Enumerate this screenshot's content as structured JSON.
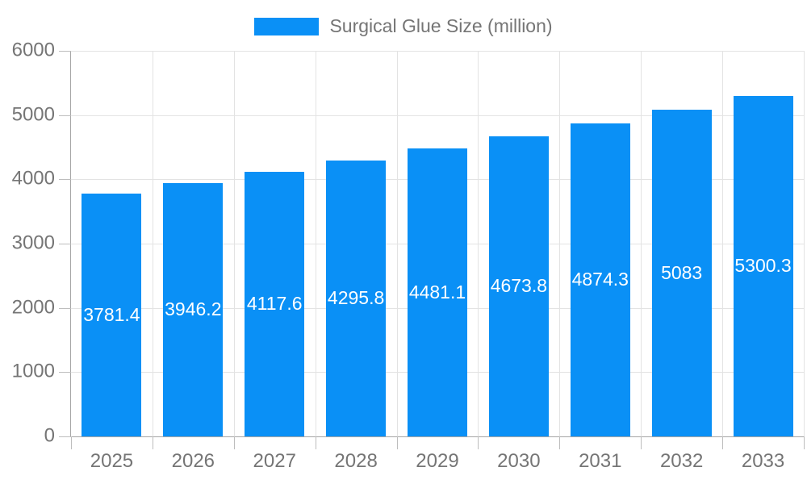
{
  "chart_data": {
    "type": "bar",
    "title": "Surgical Glue Size (million)",
    "legend": {
      "position": "top",
      "label": "Surgical Glue Size (million)"
    },
    "categories": [
      "2025",
      "2026",
      "2027",
      "2028",
      "2029",
      "2030",
      "2031",
      "2032",
      "2033"
    ],
    "series": [
      {
        "name": "Surgical Glue Size (million)",
        "values": [
          3781.4,
          3946.2,
          4117.6,
          4295.8,
          4481.1,
          4673.8,
          4874.3,
          5083,
          5300.3
        ],
        "data_labels": [
          "3781.4",
          "3946.2",
          "4117.6",
          "4295.8",
          "4481.1",
          "4673.8",
          "4874.3",
          "5083",
          "5300.3"
        ]
      }
    ],
    "xlabel": "",
    "ylabel": "",
    "ylim": [
      0,
      6000
    ],
    "yticks": [
      0,
      1000,
      2000,
      3000,
      4000,
      5000,
      6000
    ],
    "ytick_labels": [
      "0",
      "1000",
      "2000",
      "3000",
      "4000",
      "5000",
      "6000"
    ],
    "grid": true,
    "legend_position": "top-center",
    "colors": {
      "bar": "#0a90f6",
      "grid": "#e3e3e3",
      "axis": "#a6a6a6",
      "tick": "#bdbdbd",
      "axis_text": "#757575",
      "data_label_text": "#ffffff",
      "background": "#ffffff"
    }
  }
}
